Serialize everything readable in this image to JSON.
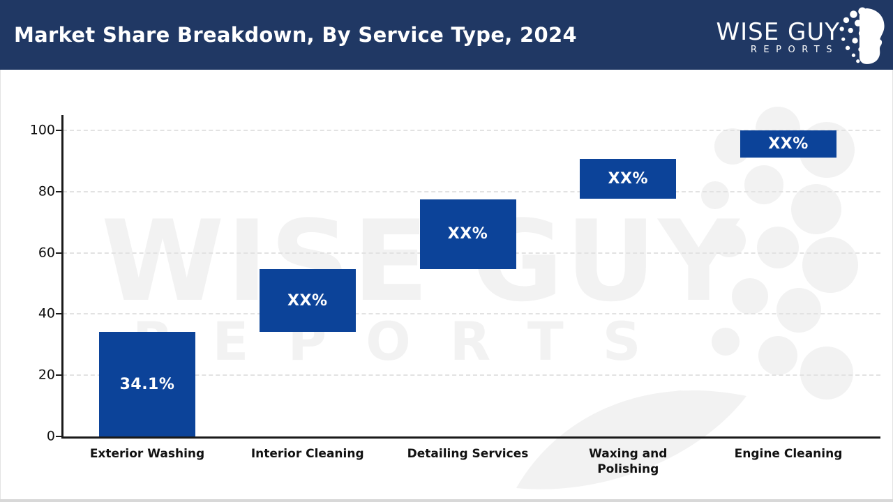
{
  "header": {
    "title": "Market Share Breakdown, By Service Type, 2024",
    "logo": {
      "name": "WISE GUY",
      "sub": "REPORTS"
    }
  },
  "watermark": {
    "line1": "WISE GUY",
    "line2": "REPORTS"
  },
  "colors": {
    "header_bg": "#203864",
    "bar": "#0c4399",
    "bar_label": "#ffffff",
    "grid": "#e2e2e2",
    "axis": "#1a1a1a",
    "watermark": "#f2f2f2",
    "footer_line": "#d8d8d8"
  },
  "chart_data": {
    "type": "bar",
    "subtype": "waterfall",
    "title": "Market Share Breakdown, By Service Type, 2024",
    "xlabel": "",
    "ylabel": "",
    "categories": [
      "Exterior Washing",
      "Interior Cleaning",
      "Detailing Services",
      "Waxing and Polishing",
      "Engine Cleaning"
    ],
    "segments": [
      {
        "category": "Exterior Washing",
        "start": 0,
        "end": 34.1,
        "label": "34.1%"
      },
      {
        "category": "Interior Cleaning",
        "start": 34.1,
        "end": 54.7,
        "label": "XX%"
      },
      {
        "category": "Detailing Services",
        "start": 54.7,
        "end": 77.5,
        "label": "XX%"
      },
      {
        "category": "Waxing and Polishing",
        "start": 77.7,
        "end": 90.7,
        "label": "XX%"
      },
      {
        "category": "Engine Cleaning",
        "start": 91.2,
        "end": 100,
        "label": "XX%"
      }
    ],
    "y_ticks": [
      0,
      20,
      40,
      60,
      80,
      100
    ],
    "ylim": [
      0,
      105
    ],
    "grid": "horizontal-dashed",
    "legend": "none",
    "bar_color": "#0c4399"
  }
}
